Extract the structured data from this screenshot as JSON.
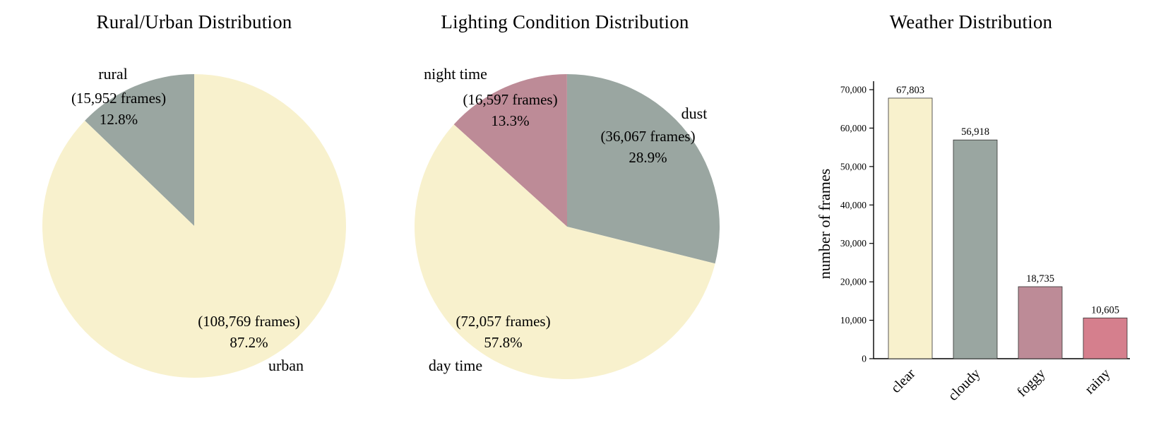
{
  "figure": {
    "background": "#ffffff"
  },
  "chart_data": [
    {
      "type": "pie",
      "title": "Rural/Urban Distribution",
      "start_angle": 90,
      "counterclock": true,
      "slices": [
        {
          "label": "rural",
          "frames_label": "(15,952 frames)",
          "pct_label": "12.8%",
          "value": 12.8,
          "color": "#9aa6a1"
        },
        {
          "label": "urban",
          "frames_label": "(108,769 frames)",
          "pct_label": "87.2%",
          "value": 87.2,
          "color": "#f8f1cd"
        }
      ]
    },
    {
      "type": "pie",
      "title": "Lighting Condition Distribution",
      "start_angle": -14,
      "counterclock": true,
      "slices": [
        {
          "label": "dust",
          "frames_label": "(36,067 frames)",
          "pct_label": "28.9%",
          "value": 28.9,
          "color": "#9aa6a1"
        },
        {
          "label": "night time",
          "frames_label": "(16,597 frames)",
          "pct_label": "13.3%",
          "value": 13.3,
          "color": "#bd8b97"
        },
        {
          "label": "day time",
          "frames_label": "(72,057 frames)",
          "pct_label": "57.8%",
          "value": 57.8,
          "color": "#f8f1cd"
        }
      ]
    },
    {
      "type": "bar",
      "title": "Weather Distribution",
      "ylabel": "number of frames",
      "categories": [
        "clear",
        "cloudy",
        "foggy",
        "rainy"
      ],
      "values": [
        67803,
        56918,
        18735,
        10605
      ],
      "value_labels": [
        "67,803",
        "56,918",
        "18,735",
        "10,605"
      ],
      "colors": [
        "#f8f1cd",
        "#9aa6a1",
        "#bd8b97",
        "#d57f8d"
      ],
      "ylim": [
        0,
        70000
      ],
      "yticks": [
        0,
        10000,
        20000,
        30000,
        40000,
        50000,
        60000,
        70000
      ],
      "ytick_labels": [
        "0",
        "10,000",
        "20,000",
        "30,000",
        "40,000",
        "50,000",
        "60,000",
        "70,000"
      ],
      "grid": false,
      "legend": "none"
    }
  ]
}
